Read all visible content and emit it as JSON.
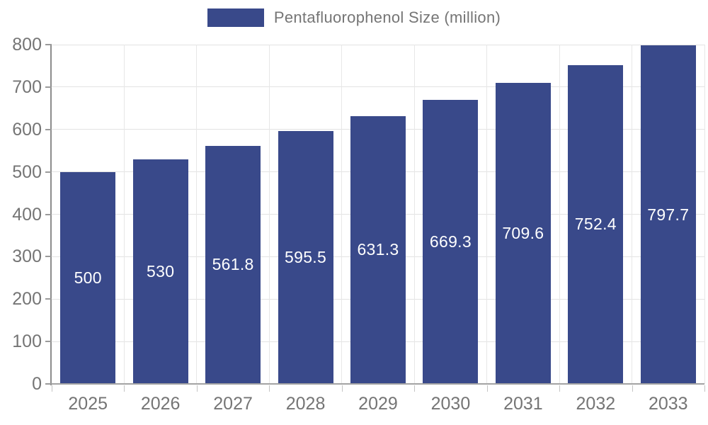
{
  "legend": {
    "label": "Pentafluorophenol Size (million)",
    "swatch_color": "#39498a"
  },
  "chart_data": {
    "type": "bar",
    "title": "",
    "xlabel": "",
    "ylabel": "",
    "categories": [
      "2025",
      "2026",
      "2027",
      "2028",
      "2029",
      "2030",
      "2031",
      "2032",
      "2033"
    ],
    "series": [
      {
        "name": "Pentafluorophenol Size (million)",
        "values": [
          500,
          530,
          561.8,
          595.5,
          631.3,
          669.3,
          709.6,
          752.4,
          797.7
        ]
      }
    ],
    "value_labels": [
      "500",
      "530",
      "561.8",
      "595.5",
      "631.3",
      "669.3",
      "709.6",
      "752.4",
      "797.7"
    ],
    "ylim": [
      0,
      800
    ],
    "yticks": [
      0,
      100,
      200,
      300,
      400,
      500,
      600,
      700,
      800
    ],
    "grid": true,
    "legend_position": "top-center",
    "bar_color": "#39498a",
    "value_label_color": "#ffffff"
  },
  "colors": {
    "bar": "#39498a",
    "axis_text": "#757575",
    "gridline": "#e2e2e2",
    "axis_line": "#8c8c8c",
    "background": "#ffffff"
  }
}
